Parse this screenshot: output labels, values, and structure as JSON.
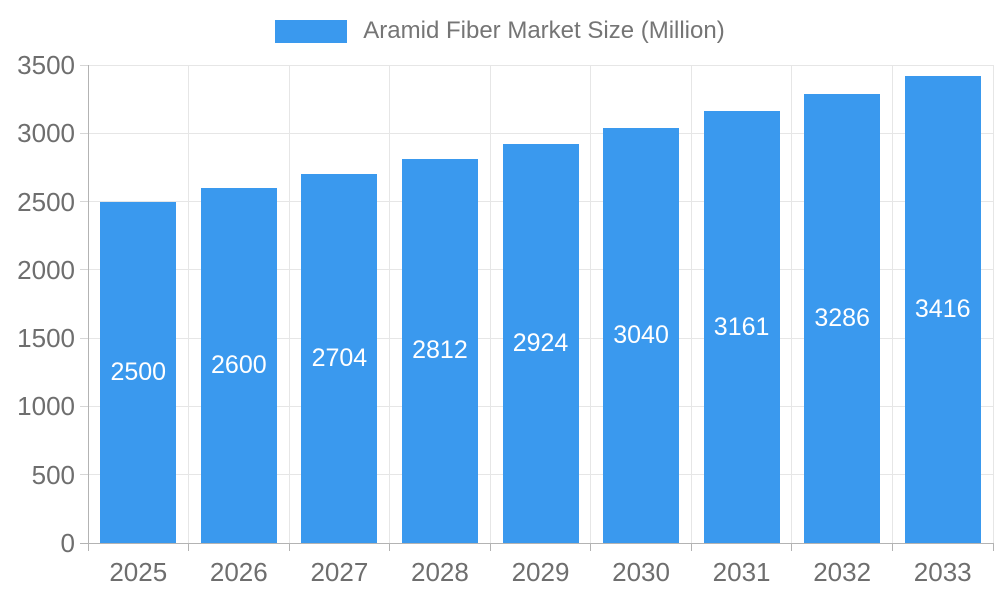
{
  "chart_data": {
    "type": "bar",
    "title": "Aramid Fiber Market Size (Million)",
    "categories": [
      "2025",
      "2026",
      "2027",
      "2028",
      "2029",
      "2030",
      "2031",
      "2032",
      "2033"
    ],
    "values": [
      2500,
      2600,
      2704,
      2812,
      2924,
      3040,
      3161,
      3286,
      3416
    ],
    "yticks": [
      0,
      500,
      1000,
      1500,
      2000,
      2500,
      3000,
      3500
    ],
    "ylim": [
      0,
      3500
    ],
    "xlabel": "",
    "ylabel": "",
    "grid": true,
    "legend_position": "top",
    "bar_labels_inside": true,
    "colors": {
      "bar": "#3a99ee",
      "grid_line": "#e6e6e6",
      "axis_line": "#b3b3b3",
      "y_tick": "#d6d6d6",
      "x_tick": "#b3b3b3",
      "axis_text": "#6e6e6e",
      "legend_text": "#757575",
      "bar_label_text": "#ffffff",
      "background": "#ffffff"
    }
  }
}
